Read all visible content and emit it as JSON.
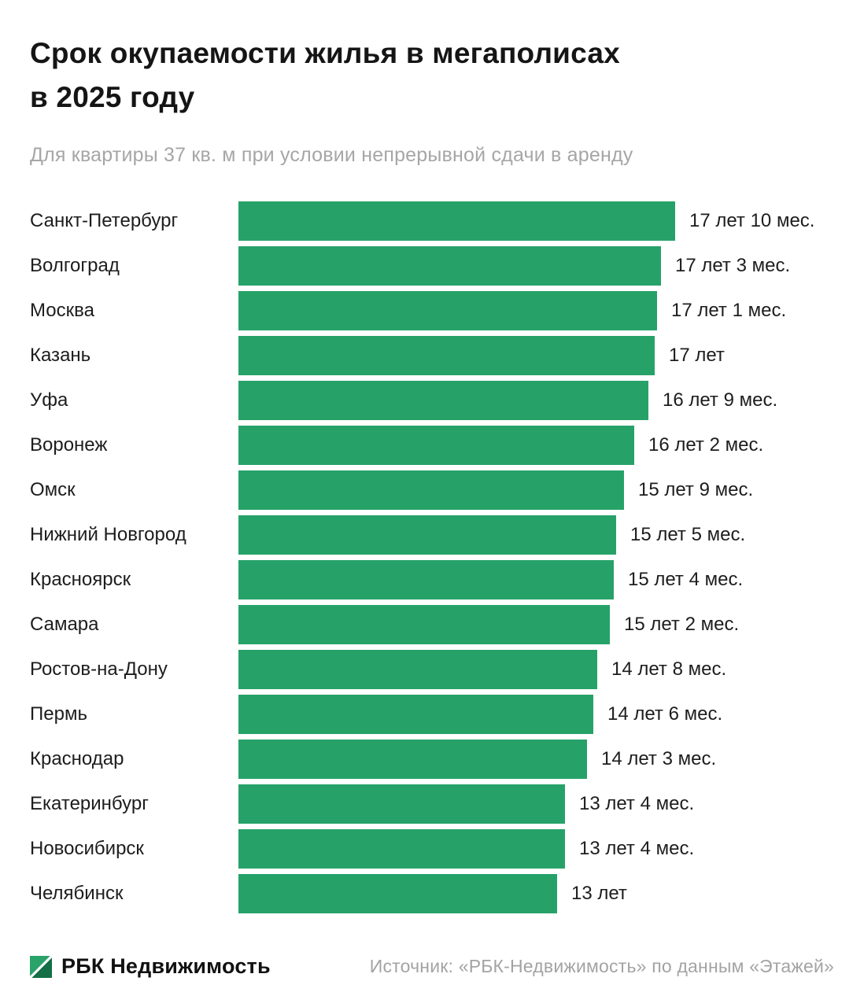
{
  "header": {
    "title": "Срок окупаемости жилья в мегаполисах\nв 2025 году",
    "subtitle": "Для квартиры 37 кв. м при условии непрерывной сдачи в аренду"
  },
  "chart_data": {
    "type": "bar",
    "orientation": "horizontal",
    "title": "Срок окупаемости жилья в мегаполисах в 2025 году",
    "subtitle": "Для квартиры 37 кв. м при условии непрерывной сдачи в аренду",
    "unit": "месяцы",
    "bar_color": "#26a269",
    "xlim": [
      0,
      214
    ],
    "legend": "none",
    "grid": false,
    "categories": [
      "Санкт-Петербург",
      "Волгоград",
      "Москва",
      "Казань",
      "Уфа",
      "Воронеж",
      "Омск",
      "Нижний Новгород",
      "Красноярск",
      "Самара",
      "Ростов-на-Дону",
      "Пермь",
      "Краснодар",
      "Екатеринбург",
      "Новосибирск",
      "Челябинск"
    ],
    "values": [
      214,
      207,
      205,
      204,
      201,
      194,
      189,
      185,
      184,
      182,
      176,
      174,
      171,
      160,
      160,
      156
    ],
    "value_labels": [
      "17 лет 10 мес.",
      "17 лет 3 мес.",
      "17 лет 1 мес.",
      "17 лет",
      "16 лет 9 мес.",
      "16 лет 2 мес.",
      "15 лет 9 мес.",
      "15 лет 5 мес.",
      "15 лет 4 мес.",
      "15 лет 2 мес.",
      "14 лет 8 мес.",
      "14 лет 6 мес.",
      "14 лет 3 мес.",
      "13 лет 4 мес.",
      "13 лет 4 мес.",
      "13 лет"
    ]
  },
  "footer": {
    "logo_text": "РБК Недвижимость",
    "source": "Источник: «РБК-Недвижимость» по данным «Этажей»"
  }
}
